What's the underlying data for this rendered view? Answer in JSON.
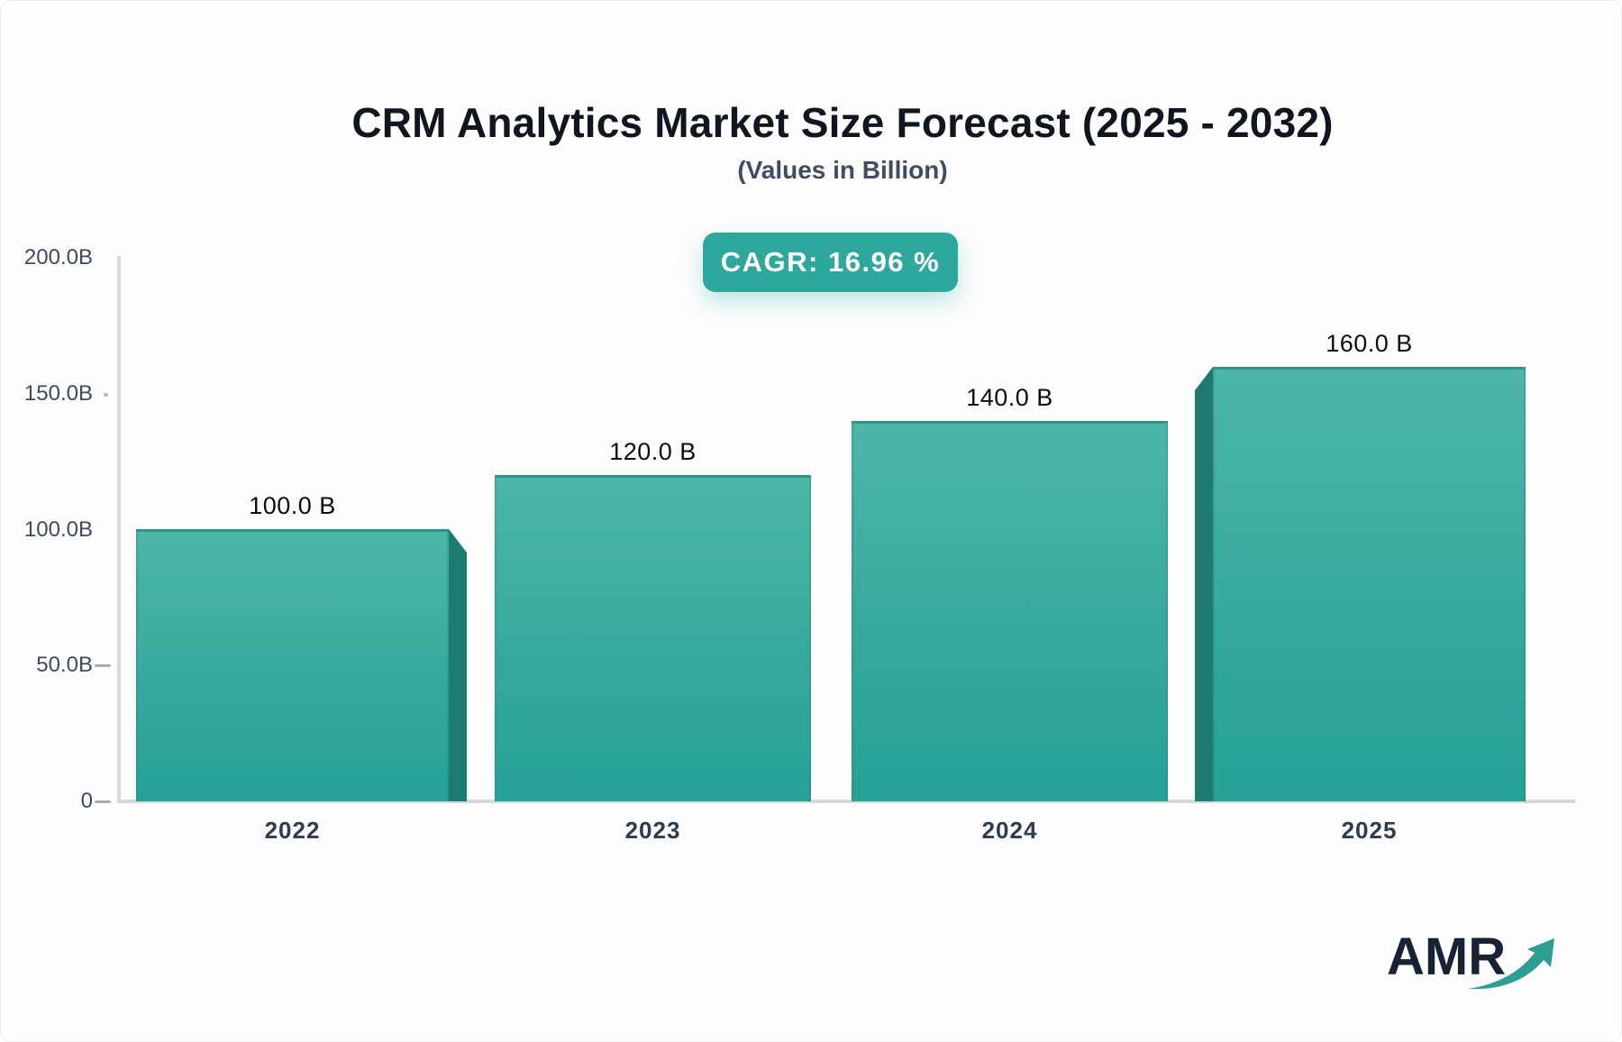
{
  "header": {
    "title": "CRM Analytics Market Size Forecast (2025 - 2032)",
    "subtitle": "(Values in Billion)"
  },
  "badge": {
    "label": "CAGR: 16.96 %",
    "background": "#2ea79c",
    "text_color": "#ffffff"
  },
  "chart_data": {
    "type": "bar",
    "title": "CRM Analytics Market Size Forecast (2025 - 2032)",
    "subtitle": "(Values in Billion)",
    "cagr_annotation": "CAGR: 16.96 %",
    "categories": [
      "2022",
      "2023",
      "2024",
      "2025"
    ],
    "values": [
      100.0,
      120.0,
      140.0,
      160.0
    ],
    "value_labels": [
      "100.0 B",
      "120.0 B",
      "140.0 B",
      "160.0 B"
    ],
    "unit": "Billion",
    "ylim": [
      0,
      200
    ],
    "y_ticks": [
      0,
      50,
      100,
      150,
      200
    ],
    "y_tick_labels": [
      "0",
      "50.0B",
      "100.0B",
      "150.0B",
      "200.0B"
    ],
    "grid": false,
    "legend": "none",
    "bar_color_top": "#4db6a8",
    "bar_color_bottom": "#26a196",
    "bar_side_3d_color": "#1e7b72",
    "axis_color": "#d6d7dd"
  },
  "logo": {
    "text": "AMR",
    "text_color": "#172234",
    "arrow_color": "#2d9f92"
  }
}
